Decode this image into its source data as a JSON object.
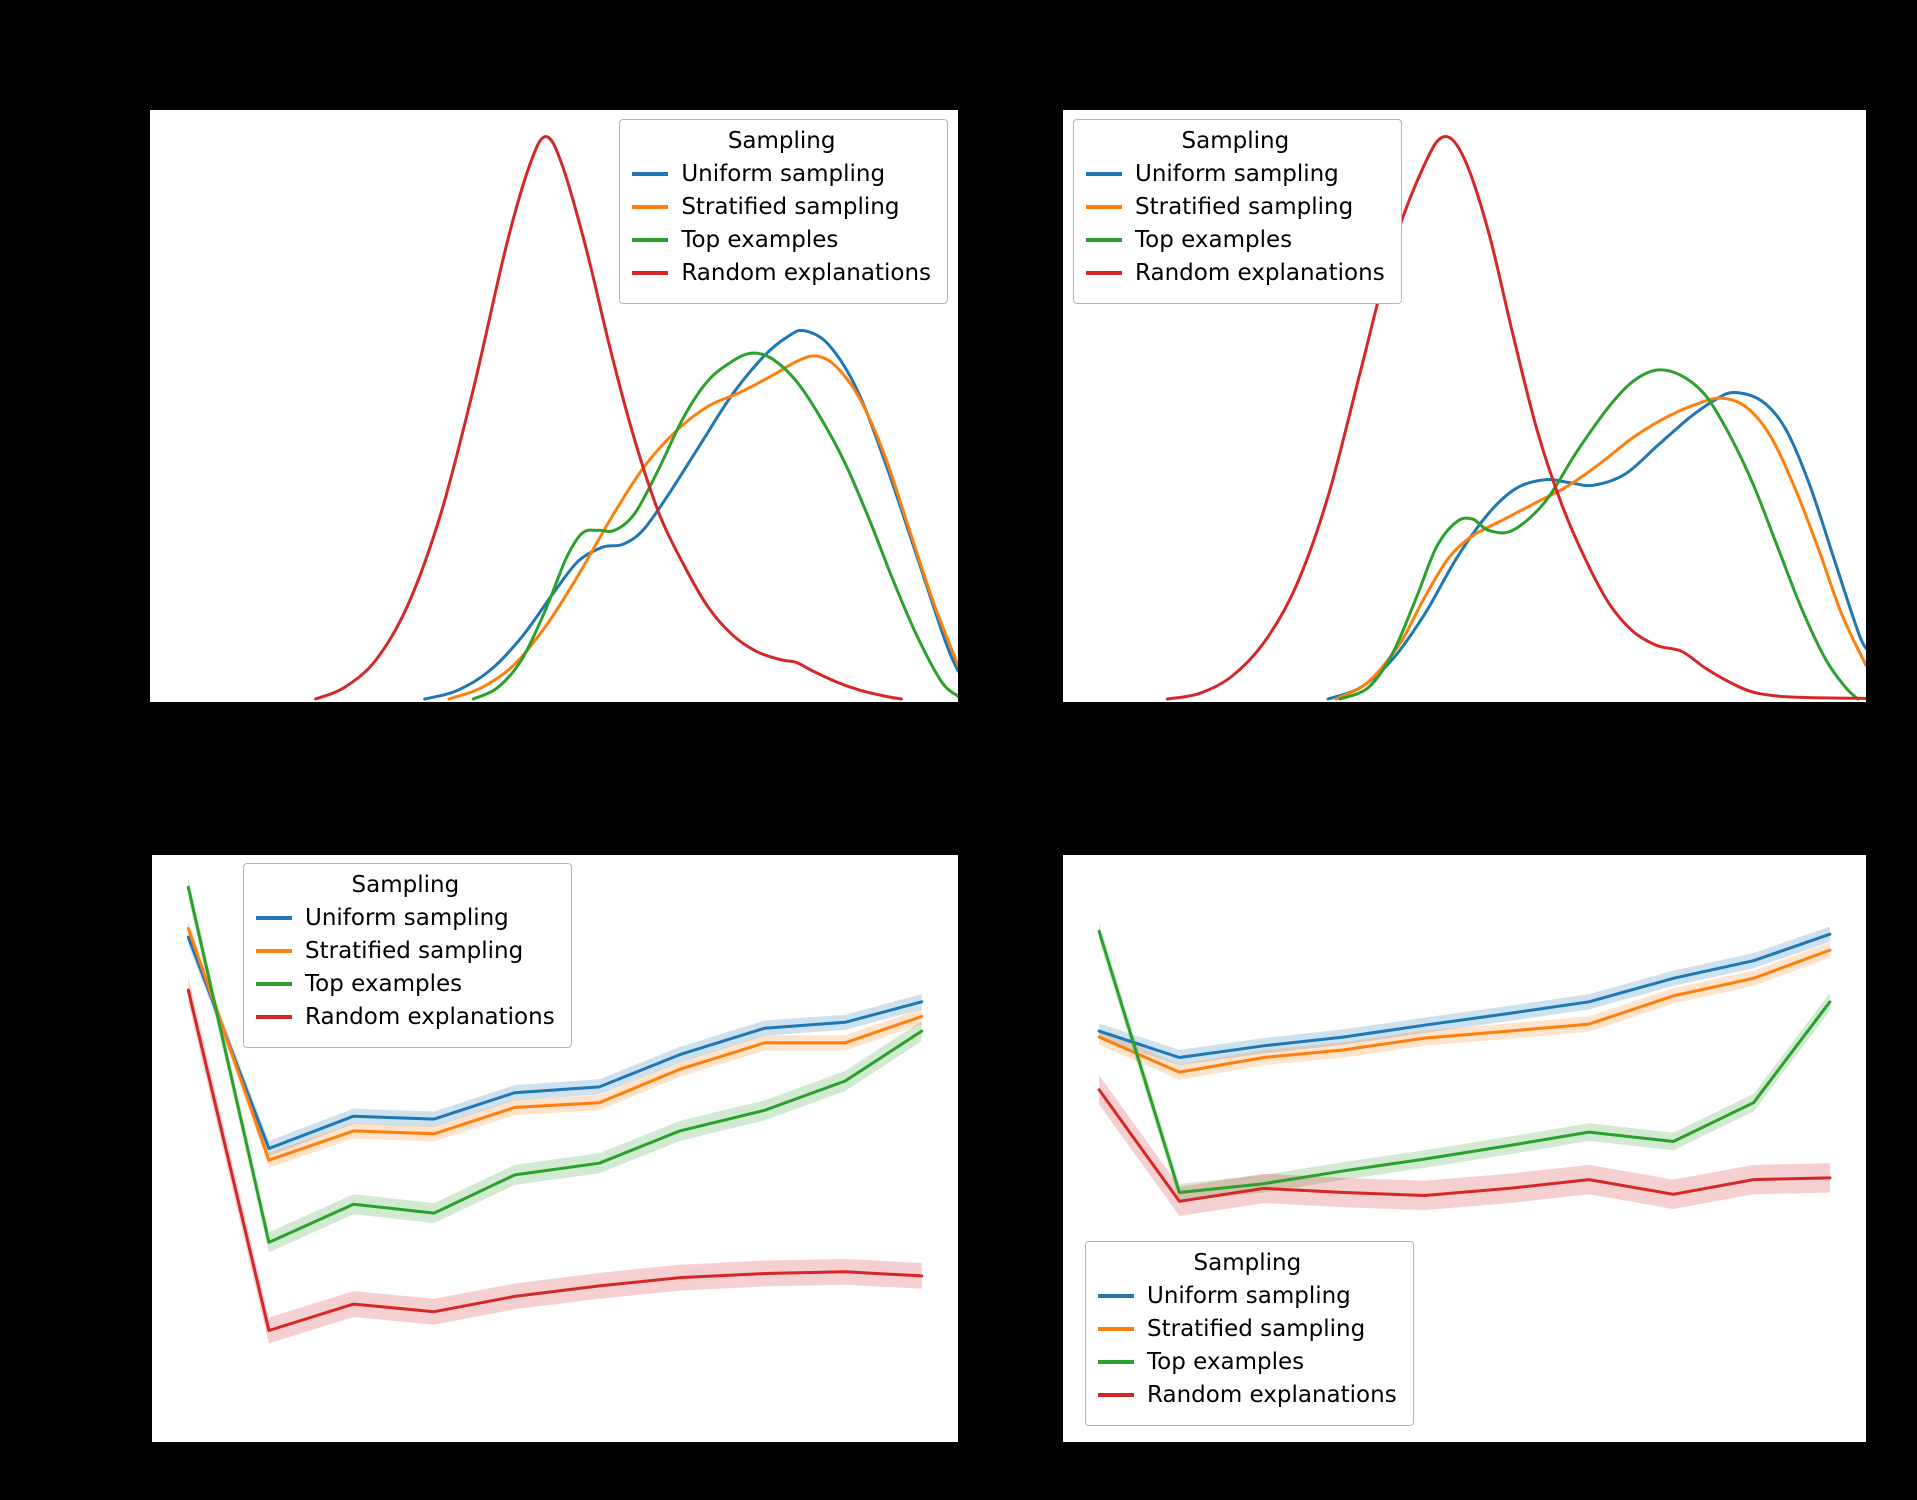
{
  "figure": {
    "background_color": "#000000",
    "panel_background_color": "#ffffff",
    "visible_text_note": "only legend text is visible; axis titles and tick labels are not rendered in the pixels"
  },
  "legend": {
    "title": "Sampling",
    "entries": [
      {
        "label": "Uniform sampling",
        "color": "#1f77b4"
      },
      {
        "label": "Stratified sampling",
        "color": "#ff7f0e"
      },
      {
        "label": "Top examples",
        "color": "#2ca02c"
      },
      {
        "label": "Random explanations",
        "color": "#d62728"
      }
    ]
  },
  "chart_data": [
    {
      "id": "top-left-density",
      "type": "line",
      "subtype": "kde-density",
      "legend_position": "upper-right",
      "x_range": [
        0,
        1
      ],
      "y_range": [
        0,
        1
      ],
      "grid": false,
      "series": [
        {
          "name": "Uniform sampling",
          "color": "#1f77b4",
          "points": [
            [
              0.34,
              0
            ],
            [
              0.38,
              0.015
            ],
            [
              0.42,
              0.05
            ],
            [
              0.46,
              0.11
            ],
            [
              0.5,
              0.19
            ],
            [
              0.53,
              0.245
            ],
            [
              0.56,
              0.27
            ],
            [
              0.585,
              0.275
            ],
            [
              0.61,
              0.3
            ],
            [
              0.64,
              0.36
            ],
            [
              0.68,
              0.45
            ],
            [
              0.72,
              0.54
            ],
            [
              0.76,
              0.61
            ],
            [
              0.79,
              0.645
            ],
            [
              0.81,
              0.655
            ],
            [
              0.84,
              0.63
            ],
            [
              0.875,
              0.55
            ],
            [
              0.91,
              0.42
            ],
            [
              0.95,
              0.25
            ],
            [
              0.985,
              0.1
            ],
            [
              1.0,
              0.05
            ]
          ]
        },
        {
          "name": "Stratified sampling",
          "color": "#ff7f0e",
          "points": [
            [
              0.37,
              0
            ],
            [
              0.41,
              0.02
            ],
            [
              0.45,
              0.06
            ],
            [
              0.49,
              0.13
            ],
            [
              0.53,
              0.22
            ],
            [
              0.57,
              0.32
            ],
            [
              0.61,
              0.41
            ],
            [
              0.65,
              0.475
            ],
            [
              0.69,
              0.52
            ],
            [
              0.73,
              0.545
            ],
            [
              0.77,
              0.575
            ],
            [
              0.8,
              0.6
            ],
            [
              0.825,
              0.61
            ],
            [
              0.85,
              0.59
            ],
            [
              0.88,
              0.53
            ],
            [
              0.91,
              0.43
            ],
            [
              0.94,
              0.3
            ],
            [
              0.97,
              0.17
            ],
            [
              1.0,
              0.06
            ]
          ]
        },
        {
          "name": "Top examples",
          "color": "#2ca02c",
          "points": [
            [
              0.4,
              0
            ],
            [
              0.43,
              0.02
            ],
            [
              0.46,
              0.07
            ],
            [
              0.49,
              0.16
            ],
            [
              0.515,
              0.25
            ],
            [
              0.535,
              0.295
            ],
            [
              0.555,
              0.3
            ],
            [
              0.575,
              0.3
            ],
            [
              0.6,
              0.33
            ],
            [
              0.63,
              0.41
            ],
            [
              0.66,
              0.5
            ],
            [
              0.69,
              0.565
            ],
            [
              0.72,
              0.6
            ],
            [
              0.745,
              0.615
            ],
            [
              0.77,
              0.605
            ],
            [
              0.8,
              0.565
            ],
            [
              0.83,
              0.5
            ],
            [
              0.86,
              0.42
            ],
            [
              0.89,
              0.32
            ],
            [
              0.92,
              0.21
            ],
            [
              0.95,
              0.11
            ],
            [
              0.98,
              0.03
            ],
            [
              1.0,
              0.005
            ]
          ]
        },
        {
          "name": "Random explanations",
          "color": "#d62728",
          "points": [
            [
              0.205,
              0
            ],
            [
              0.24,
              0.02
            ],
            [
              0.28,
              0.07
            ],
            [
              0.32,
              0.17
            ],
            [
              0.36,
              0.33
            ],
            [
              0.4,
              0.55
            ],
            [
              0.44,
              0.8
            ],
            [
              0.47,
              0.95
            ],
            [
              0.49,
              1.0
            ],
            [
              0.51,
              0.95
            ],
            [
              0.54,
              0.8
            ],
            [
              0.57,
              0.62
            ],
            [
              0.6,
              0.46
            ],
            [
              0.63,
              0.33
            ],
            [
              0.66,
              0.24
            ],
            [
              0.69,
              0.165
            ],
            [
              0.72,
              0.115
            ],
            [
              0.75,
              0.085
            ],
            [
              0.78,
              0.07
            ],
            [
              0.8,
              0.065
            ],
            [
              0.82,
              0.05
            ],
            [
              0.85,
              0.03
            ],
            [
              0.88,
              0.015
            ],
            [
              0.91,
              0.005
            ],
            [
              0.93,
              0
            ]
          ]
        }
      ]
    },
    {
      "id": "top-right-density",
      "type": "line",
      "subtype": "kde-density",
      "legend_position": "upper-left",
      "x_range": [
        0,
        1
      ],
      "y_range": [
        0,
        1
      ],
      "grid": false,
      "series": [
        {
          "name": "Uniform sampling",
          "color": "#1f77b4",
          "points": [
            [
              0.33,
              0
            ],
            [
              0.37,
              0.02
            ],
            [
              0.41,
              0.07
            ],
            [
              0.45,
              0.15
            ],
            [
              0.49,
              0.25
            ],
            [
              0.53,
              0.33
            ],
            [
              0.565,
              0.375
            ],
            [
              0.6,
              0.39
            ],
            [
              0.63,
              0.385
            ],
            [
              0.66,
              0.38
            ],
            [
              0.7,
              0.4
            ],
            [
              0.74,
              0.45
            ],
            [
              0.78,
              0.5
            ],
            [
              0.81,
              0.53
            ],
            [
              0.835,
              0.545
            ],
            [
              0.87,
              0.53
            ],
            [
              0.9,
              0.48
            ],
            [
              0.93,
              0.38
            ],
            [
              0.96,
              0.25
            ],
            [
              0.99,
              0.12
            ],
            [
              1.0,
              0.09
            ]
          ]
        },
        {
          "name": "Stratified sampling",
          "color": "#ff7f0e",
          "points": [
            [
              0.34,
              0
            ],
            [
              0.38,
              0.03
            ],
            [
              0.42,
              0.1
            ],
            [
              0.45,
              0.18
            ],
            [
              0.48,
              0.25
            ],
            [
              0.51,
              0.29
            ],
            [
              0.55,
              0.32
            ],
            [
              0.59,
              0.35
            ],
            [
              0.63,
              0.38
            ],
            [
              0.67,
              0.42
            ],
            [
              0.71,
              0.465
            ],
            [
              0.75,
              0.5
            ],
            [
              0.79,
              0.525
            ],
            [
              0.82,
              0.535
            ],
            [
              0.85,
              0.52
            ],
            [
              0.88,
              0.47
            ],
            [
              0.91,
              0.38
            ],
            [
              0.94,
              0.27
            ],
            [
              0.97,
              0.15
            ],
            [
              1.0,
              0.06
            ]
          ]
        },
        {
          "name": "Top examples",
          "color": "#2ca02c",
          "points": [
            [
              0.345,
              0
            ],
            [
              0.38,
              0.02
            ],
            [
              0.41,
              0.08
            ],
            [
              0.44,
              0.18
            ],
            [
              0.465,
              0.27
            ],
            [
              0.49,
              0.315
            ],
            [
              0.51,
              0.32
            ],
            [
              0.53,
              0.3
            ],
            [
              0.56,
              0.3
            ],
            [
              0.6,
              0.35
            ],
            [
              0.64,
              0.44
            ],
            [
              0.68,
              0.52
            ],
            [
              0.71,
              0.565
            ],
            [
              0.74,
              0.585
            ],
            [
              0.77,
              0.575
            ],
            [
              0.8,
              0.54
            ],
            [
              0.83,
              0.47
            ],
            [
              0.86,
              0.38
            ],
            [
              0.89,
              0.27
            ],
            [
              0.92,
              0.16
            ],
            [
              0.95,
              0.07
            ],
            [
              0.975,
              0.02
            ],
            [
              0.99,
              0
            ]
          ]
        },
        {
          "name": "Random explanations",
          "color": "#d62728",
          "points": [
            [
              0.13,
              0
            ],
            [
              0.17,
              0.01
            ],
            [
              0.21,
              0.04
            ],
            [
              0.25,
              0.1
            ],
            [
              0.29,
              0.2
            ],
            [
              0.33,
              0.36
            ],
            [
              0.37,
              0.58
            ],
            [
              0.41,
              0.8
            ],
            [
              0.45,
              0.95
            ],
            [
              0.475,
              1.0
            ],
            [
              0.5,
              0.96
            ],
            [
              0.53,
              0.83
            ],
            [
              0.56,
              0.65
            ],
            [
              0.59,
              0.48
            ],
            [
              0.62,
              0.35
            ],
            [
              0.65,
              0.25
            ],
            [
              0.68,
              0.17
            ],
            [
              0.71,
              0.12
            ],
            [
              0.74,
              0.095
            ],
            [
              0.77,
              0.085
            ],
            [
              0.8,
              0.055
            ],
            [
              0.83,
              0.03
            ],
            [
              0.86,
              0.012
            ],
            [
              0.9,
              0.004
            ],
            [
              0.95,
              0.002
            ],
            [
              1.0,
              0.001
            ]
          ]
        }
      ]
    },
    {
      "id": "bottom-left-lines",
      "type": "line",
      "subtype": "line-with-confidence-band",
      "legend_position": "upper-left",
      "x": [
        0.045,
        0.145,
        0.25,
        0.35,
        0.45,
        0.555,
        0.655,
        0.76,
        0.86,
        0.955
      ],
      "y_range": [
        0,
        1
      ],
      "grid": false,
      "series": [
        {
          "name": "Uniform sampling",
          "color": "#1f77b4",
          "band": 0.013,
          "values": [
            0.86,
            0.5,
            0.555,
            0.55,
            0.595,
            0.605,
            0.66,
            0.705,
            0.715,
            0.75
          ]
        },
        {
          "name": "Stratified sampling",
          "color": "#ff7f0e",
          "band": 0.013,
          "values": [
            0.875,
            0.48,
            0.53,
            0.525,
            0.57,
            0.578,
            0.635,
            0.68,
            0.68,
            0.725
          ]
        },
        {
          "name": "Top examples",
          "color": "#2ca02c",
          "band": 0.017,
          "values": [
            0.945,
            0.34,
            0.405,
            0.39,
            0.455,
            0.475,
            0.53,
            0.565,
            0.615,
            0.7
          ]
        },
        {
          "name": "Random explanations",
          "color": "#d62728",
          "band": 0.022,
          "values": [
            0.77,
            0.19,
            0.235,
            0.222,
            0.248,
            0.266,
            0.28,
            0.287,
            0.29,
            0.283
          ]
        }
      ]
    },
    {
      "id": "bottom-right-lines",
      "type": "line",
      "subtype": "line-with-confidence-band",
      "legend_position": "lower-left",
      "x": [
        0.045,
        0.145,
        0.25,
        0.35,
        0.45,
        0.555,
        0.655,
        0.76,
        0.86,
        0.955
      ],
      "y_range": [
        0,
        1
      ],
      "grid": false,
      "series": [
        {
          "name": "Uniform sampling",
          "color": "#1f77b4",
          "band": 0.013,
          "values": [
            0.7,
            0.655,
            0.675,
            0.69,
            0.71,
            0.73,
            0.75,
            0.79,
            0.82,
            0.865
          ]
        },
        {
          "name": "Stratified sampling",
          "color": "#ff7f0e",
          "band": 0.013,
          "values": [
            0.69,
            0.63,
            0.655,
            0.668,
            0.688,
            0.7,
            0.712,
            0.76,
            0.79,
            0.838
          ]
        },
        {
          "name": "Top examples",
          "color": "#2ca02c",
          "band": 0.015,
          "values": [
            0.87,
            0.425,
            0.44,
            0.462,
            0.482,
            0.505,
            0.528,
            0.512,
            0.578,
            0.75
          ]
        },
        {
          "name": "Random explanations",
          "color": "#d62728",
          "band": 0.025,
          "values": [
            0.6,
            0.41,
            0.432,
            0.425,
            0.42,
            0.432,
            0.447,
            0.422,
            0.447,
            0.45
          ]
        }
      ]
    }
  ]
}
